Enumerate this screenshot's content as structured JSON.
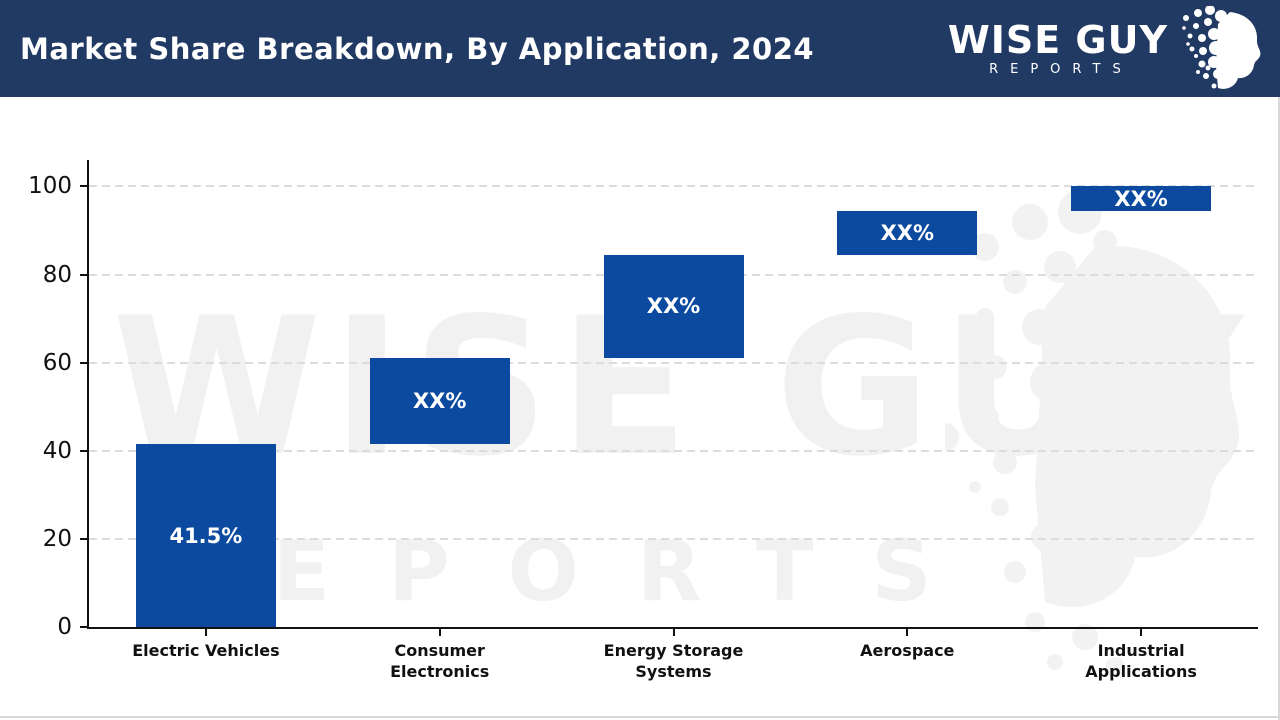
{
  "header": {
    "background_color": "#213a64",
    "title": "Market Share Breakdown, By Application, 2024",
    "logo": {
      "wordmark": "WISE GUY",
      "subtext": "REPORTS"
    }
  },
  "watermark": {
    "line1": "WISE GUY",
    "line2": "REPORTS"
  },
  "chart_data": {
    "type": "bar",
    "subtype": "stacked-waterfall",
    "title": "Market Share Breakdown, By Application, 2024",
    "categories": [
      "Electric Vehicles",
      "Consumer Electronics",
      "Energy Storage Systems",
      "Aerospace",
      "Industrial Applications"
    ],
    "segments": [
      {
        "category": "Electric Vehicles",
        "start": 0,
        "end": 41.5,
        "label": "41.5%"
      },
      {
        "category": "Consumer Electronics",
        "start": 41.5,
        "end": 61,
        "label": "XX%"
      },
      {
        "category": "Energy Storage Systems",
        "start": 61,
        "end": 84.5,
        "label": "XX%"
      },
      {
        "category": "Aerospace",
        "start": 84.5,
        "end": 94.5,
        "label": "XX%"
      },
      {
        "category": "Industrial Applications",
        "start": 94.5,
        "end": 100,
        "label": "XX%"
      }
    ],
    "yticks": [
      0,
      20,
      40,
      60,
      80,
      100
    ],
    "ylim": [
      0,
      106
    ],
    "xlabel": "",
    "ylabel": "",
    "grid": "horizontal-dashed",
    "legend": "none",
    "colors": {
      "bar": "#0b4a9e",
      "bar_label": "#ffffff",
      "axis": "#111111",
      "grid": "#dcdcdc",
      "tick_label": "#111111",
      "header_bg": "#213a64",
      "watermark": "#f1f1f1"
    }
  }
}
